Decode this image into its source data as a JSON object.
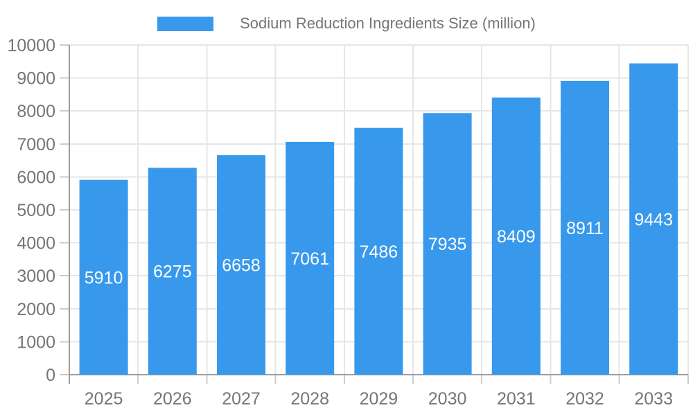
{
  "legend": {
    "label": "Sodium Reduction Ingredients Size (million)"
  },
  "colors": {
    "bar": "#3899EC",
    "text": "#757575",
    "grid": "#E6E6E6",
    "tick": "#CCCCCC",
    "axis": "#9E9E9E",
    "value_label": "#FFFFFF",
    "background": "#FFFFFF"
  },
  "chart_data": {
    "type": "bar",
    "title": "Sodium Reduction Ingredients Size (million)",
    "series_name": "Sodium Reduction Ingredients Size (million)",
    "categories": [
      "2025",
      "2026",
      "2027",
      "2028",
      "2029",
      "2030",
      "2031",
      "2032",
      "2033"
    ],
    "values": [
      5910,
      6275,
      6658,
      7061,
      7486,
      7935,
      8409,
      8911,
      9443
    ],
    "xlabel": "",
    "ylabel": "",
    "ylim": [
      0,
      10000
    ],
    "ytick_step": 1000,
    "yticks": [
      0,
      1000,
      2000,
      3000,
      4000,
      5000,
      6000,
      7000,
      8000,
      9000,
      10000
    ],
    "grid": true,
    "legend_position": "top",
    "value_labels": "inside-center"
  }
}
